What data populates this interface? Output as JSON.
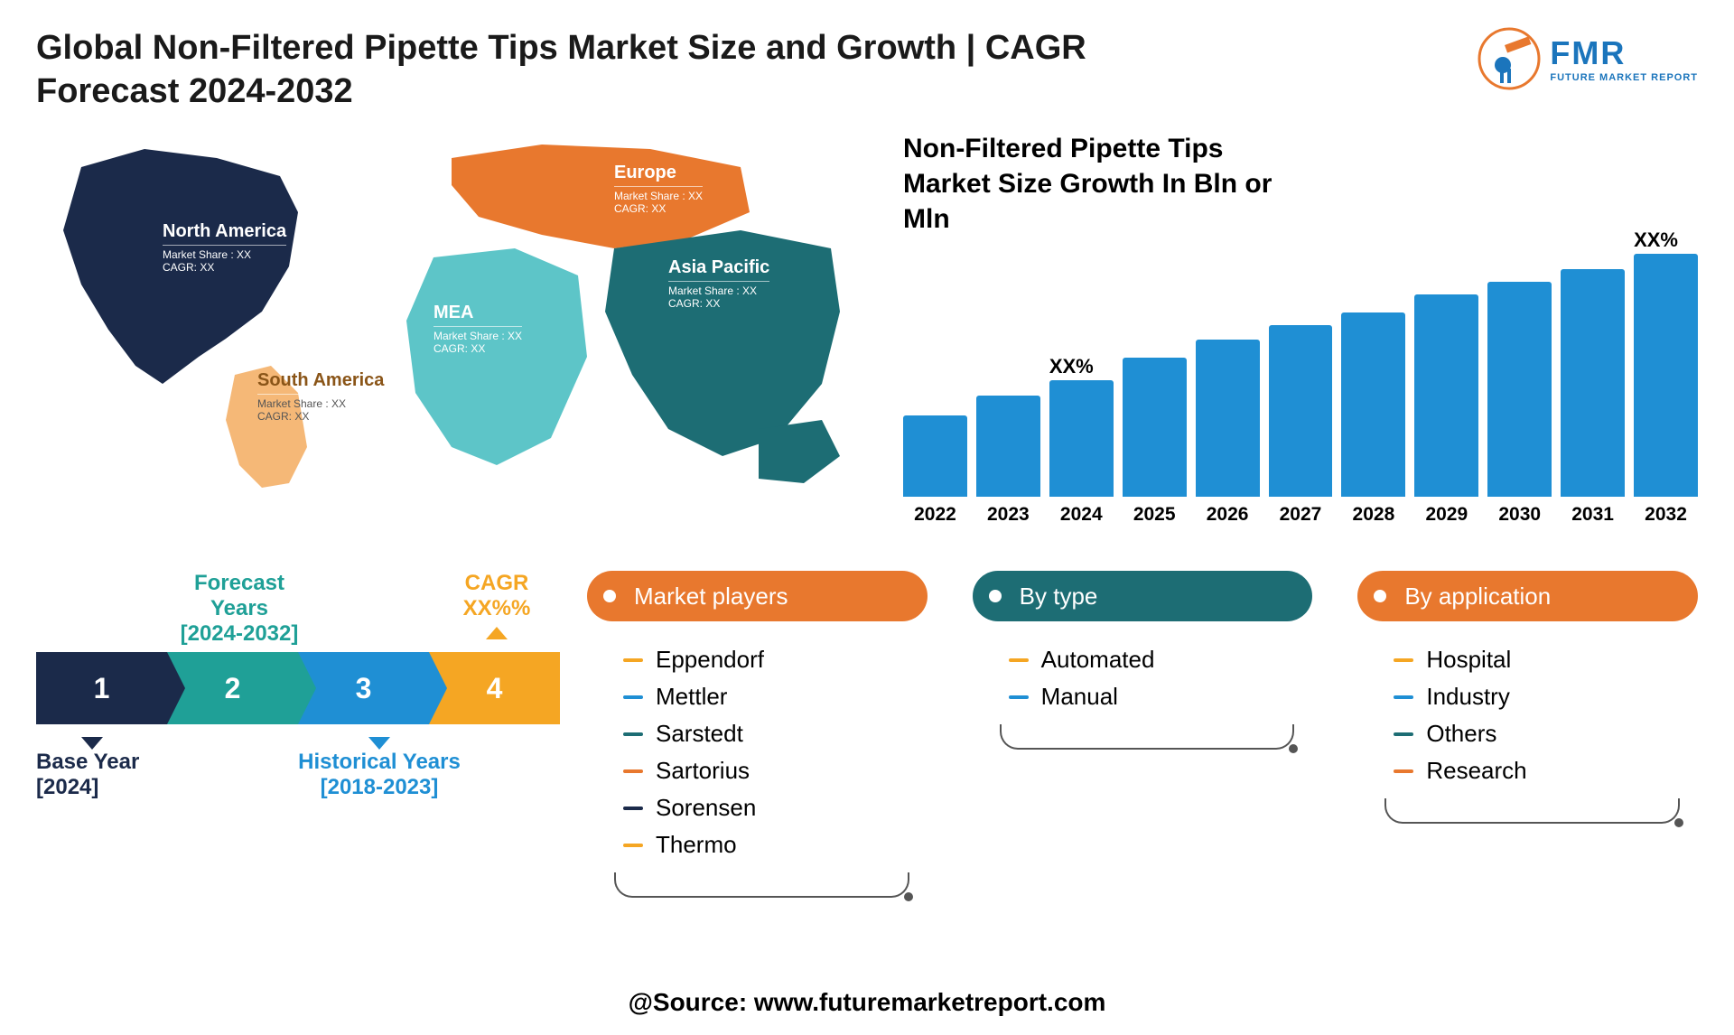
{
  "title": "Global Non-Filtered Pipette Tips Market Size and Growth | CAGR Forecast 2024-2032",
  "logo": {
    "main": "FMR",
    "sub": "FUTURE MARKET REPORT"
  },
  "map": {
    "regions": [
      {
        "name": "North America",
        "share": "Market Share : XX",
        "cagr": "CAGR: XX",
        "color": "#1b2a4a"
      },
      {
        "name": "South America",
        "share": "Market Share : XX",
        "cagr": "CAGR: XX",
        "color": "#f5b877"
      },
      {
        "name": "Europe",
        "share": "Market Share : XX",
        "cagr": "CAGR: XX",
        "color": "#e8782e"
      },
      {
        "name": "MEA",
        "share": "Market Share : XX",
        "cagr": "CAGR: XX",
        "color": "#5dc5c8"
      },
      {
        "name": "Asia Pacific",
        "share": "Market Share : XX",
        "cagr": "CAGR: XX",
        "color": "#1d6d74"
      }
    ]
  },
  "chart": {
    "title": "Non-Filtered Pipette Tips Market Size Growth In Bln or Mln",
    "type": "bar",
    "bar_color": "#1f8fd4",
    "label_first": "XX%",
    "label_last": "XX%",
    "years": [
      "2022",
      "2023",
      "2024",
      "2025",
      "2026",
      "2027",
      "2028",
      "2029",
      "2030",
      "2031",
      "2032"
    ],
    "values_pct": [
      32,
      40,
      46,
      55,
      62,
      68,
      73,
      80,
      85,
      90,
      96
    ],
    "year_fontsize": 21,
    "background_color": "#ffffff"
  },
  "timeline": {
    "forecast_label": "Forecast Years",
    "forecast_range": "[2024-2032]",
    "forecast_color": "#1fa097",
    "cagr_label": "CAGR",
    "cagr_value": "XX%%",
    "cagr_color": "#f5a623",
    "base_label": "Base Year",
    "base_range": "[2024]",
    "base_color": "#1b2a4a",
    "hist_label": "Historical Years",
    "hist_range": "[2018-2023]",
    "hist_color": "#1f8fd4",
    "segments": [
      {
        "num": "1",
        "color": "#1b2a4a"
      },
      {
        "num": "2",
        "color": "#1fa097"
      },
      {
        "num": "3",
        "color": "#1f8fd4"
      },
      {
        "num": "4",
        "color": "#f5a623"
      }
    ]
  },
  "pills": [
    {
      "title": "Market players",
      "color": "#e8782e",
      "items": [
        {
          "label": "Eppendorf",
          "tick": "#f5a623"
        },
        {
          "label": "Mettler",
          "tick": "#1f8fd4"
        },
        {
          "label": "Sarstedt",
          "tick": "#1d6d74"
        },
        {
          "label": "Sartorius",
          "tick": "#e8782e"
        },
        {
          "label": "Sorensen",
          "tick": "#1b2a4a"
        },
        {
          "label": "Thermo",
          "tick": "#f5a623"
        }
      ]
    },
    {
      "title": "By type",
      "color": "#1d6d74",
      "items": [
        {
          "label": "Automated",
          "tick": "#f5a623"
        },
        {
          "label": "Manual",
          "tick": "#1f8fd4"
        }
      ]
    },
    {
      "title": "By application",
      "color": "#e8782e",
      "items": [
        {
          "label": "Hospital",
          "tick": "#f5a623"
        },
        {
          "label": "Industry",
          "tick": "#1f8fd4"
        },
        {
          "label": "Others",
          "tick": "#1d6d74"
        },
        {
          "label": "Research",
          "tick": "#e8782e"
        }
      ]
    }
  ],
  "source": "@Source: www.futuremarketreport.com"
}
